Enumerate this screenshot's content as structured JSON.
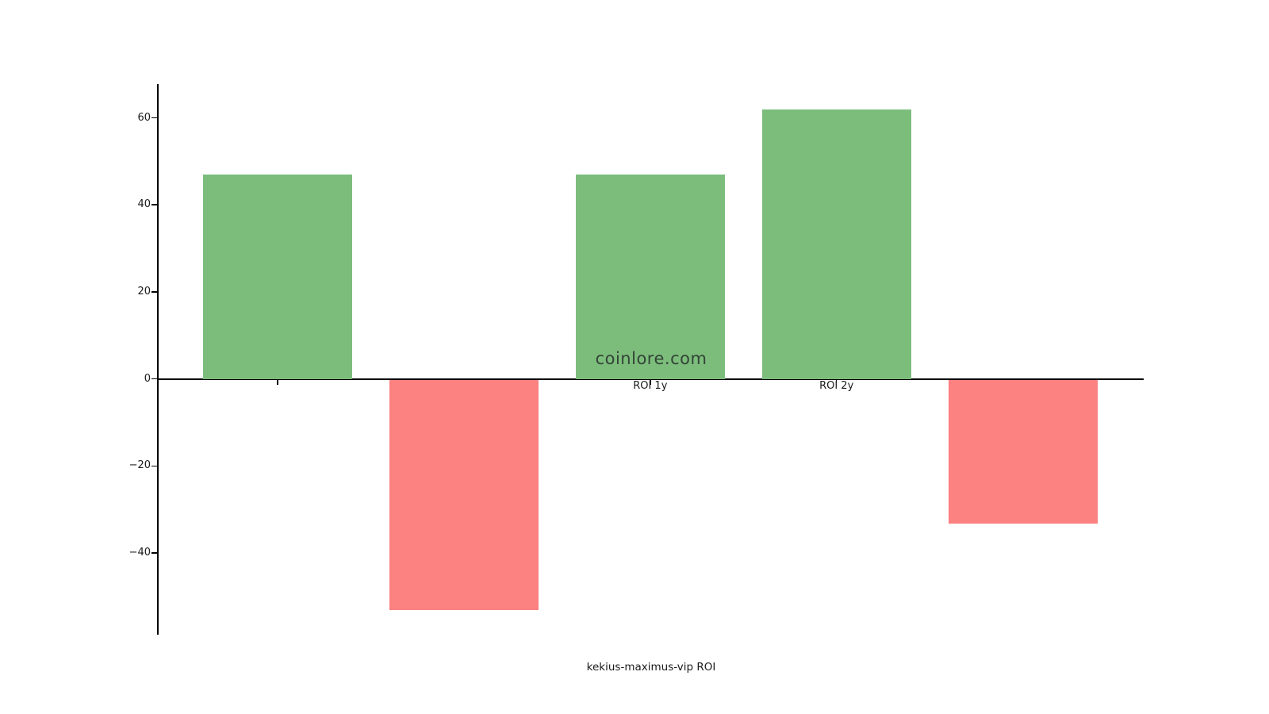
{
  "chart_data": {
    "type": "bar",
    "title": "",
    "xlabel": "kekius-maximus-vip ROI",
    "ylabel": "",
    "categories": [
      "",
      "",
      "ROI 1y",
      "ROI 2y",
      ""
    ],
    "values": [
      47,
      -53,
      47,
      62,
      -33
    ],
    "bar_colors": [
      "#7cbd7c",
      "#fc8181",
      "#7cbd7c",
      "#7cbd7c",
      "#fc8181"
    ],
    "positive_color": "#7cbd7c",
    "negative_color": "#fc8181",
    "yticks": [
      60,
      40,
      20,
      0,
      -20,
      -40
    ],
    "ylim": [
      -58.75,
      67.75
    ],
    "grid": false,
    "legend_position": "none",
    "background_color": "#ffffff",
    "axis_color": "#000000",
    "text_color": "#1a1a1a",
    "watermark": "coinlore.com"
  }
}
